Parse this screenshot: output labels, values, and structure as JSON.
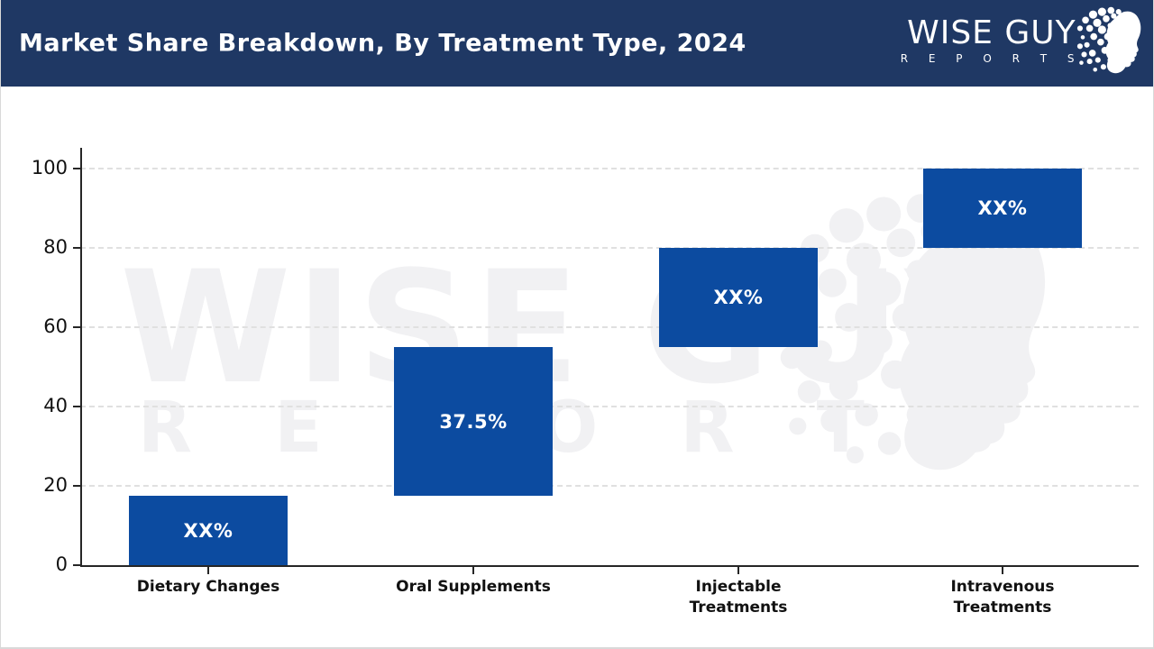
{
  "header": {
    "title": "Market Share Breakdown, By Treatment Type, 2024",
    "logo": {
      "line1": "WISE GUY",
      "line2": "R E P O R T S"
    }
  },
  "watermark": {
    "line1": "WISE GUY",
    "line2": "R E P O R T S"
  },
  "colors": {
    "header_bg": "#1f3864",
    "bar": "#0c4ba0",
    "gridline": "#e0e0e0",
    "axis": "#262626",
    "watermark": "#f1f1f3",
    "label_text": "#ffffff"
  },
  "chart_data": {
    "type": "waterfall",
    "title": "Market Share Breakdown, By Treatment Type, 2024",
    "xlabel": "",
    "ylabel": "",
    "ylim": [
      0,
      105
    ],
    "yticks": [
      0,
      20,
      40,
      60,
      80,
      100
    ],
    "grid": "horizontal-dashed",
    "legend": "none",
    "categories": [
      "Dietary Changes",
      "Oral Supplements",
      "Injectable\nTreatments",
      "Intravenous\nTreatments"
    ],
    "segments": [
      {
        "category": "Dietary Changes",
        "start": 0,
        "end": 17.5,
        "value": 17.5,
        "label": "XX%"
      },
      {
        "category": "Oral Supplements",
        "start": 17.5,
        "end": 55,
        "value": 37.5,
        "label": "37.5%"
      },
      {
        "category": "Injectable\nTreatments",
        "start": 55,
        "end": 80,
        "value": 25,
        "label": "XX%"
      },
      {
        "category": "Intravenous\nTreatments",
        "start": 80,
        "end": 100,
        "value": 20,
        "label": "XX%"
      }
    ]
  }
}
